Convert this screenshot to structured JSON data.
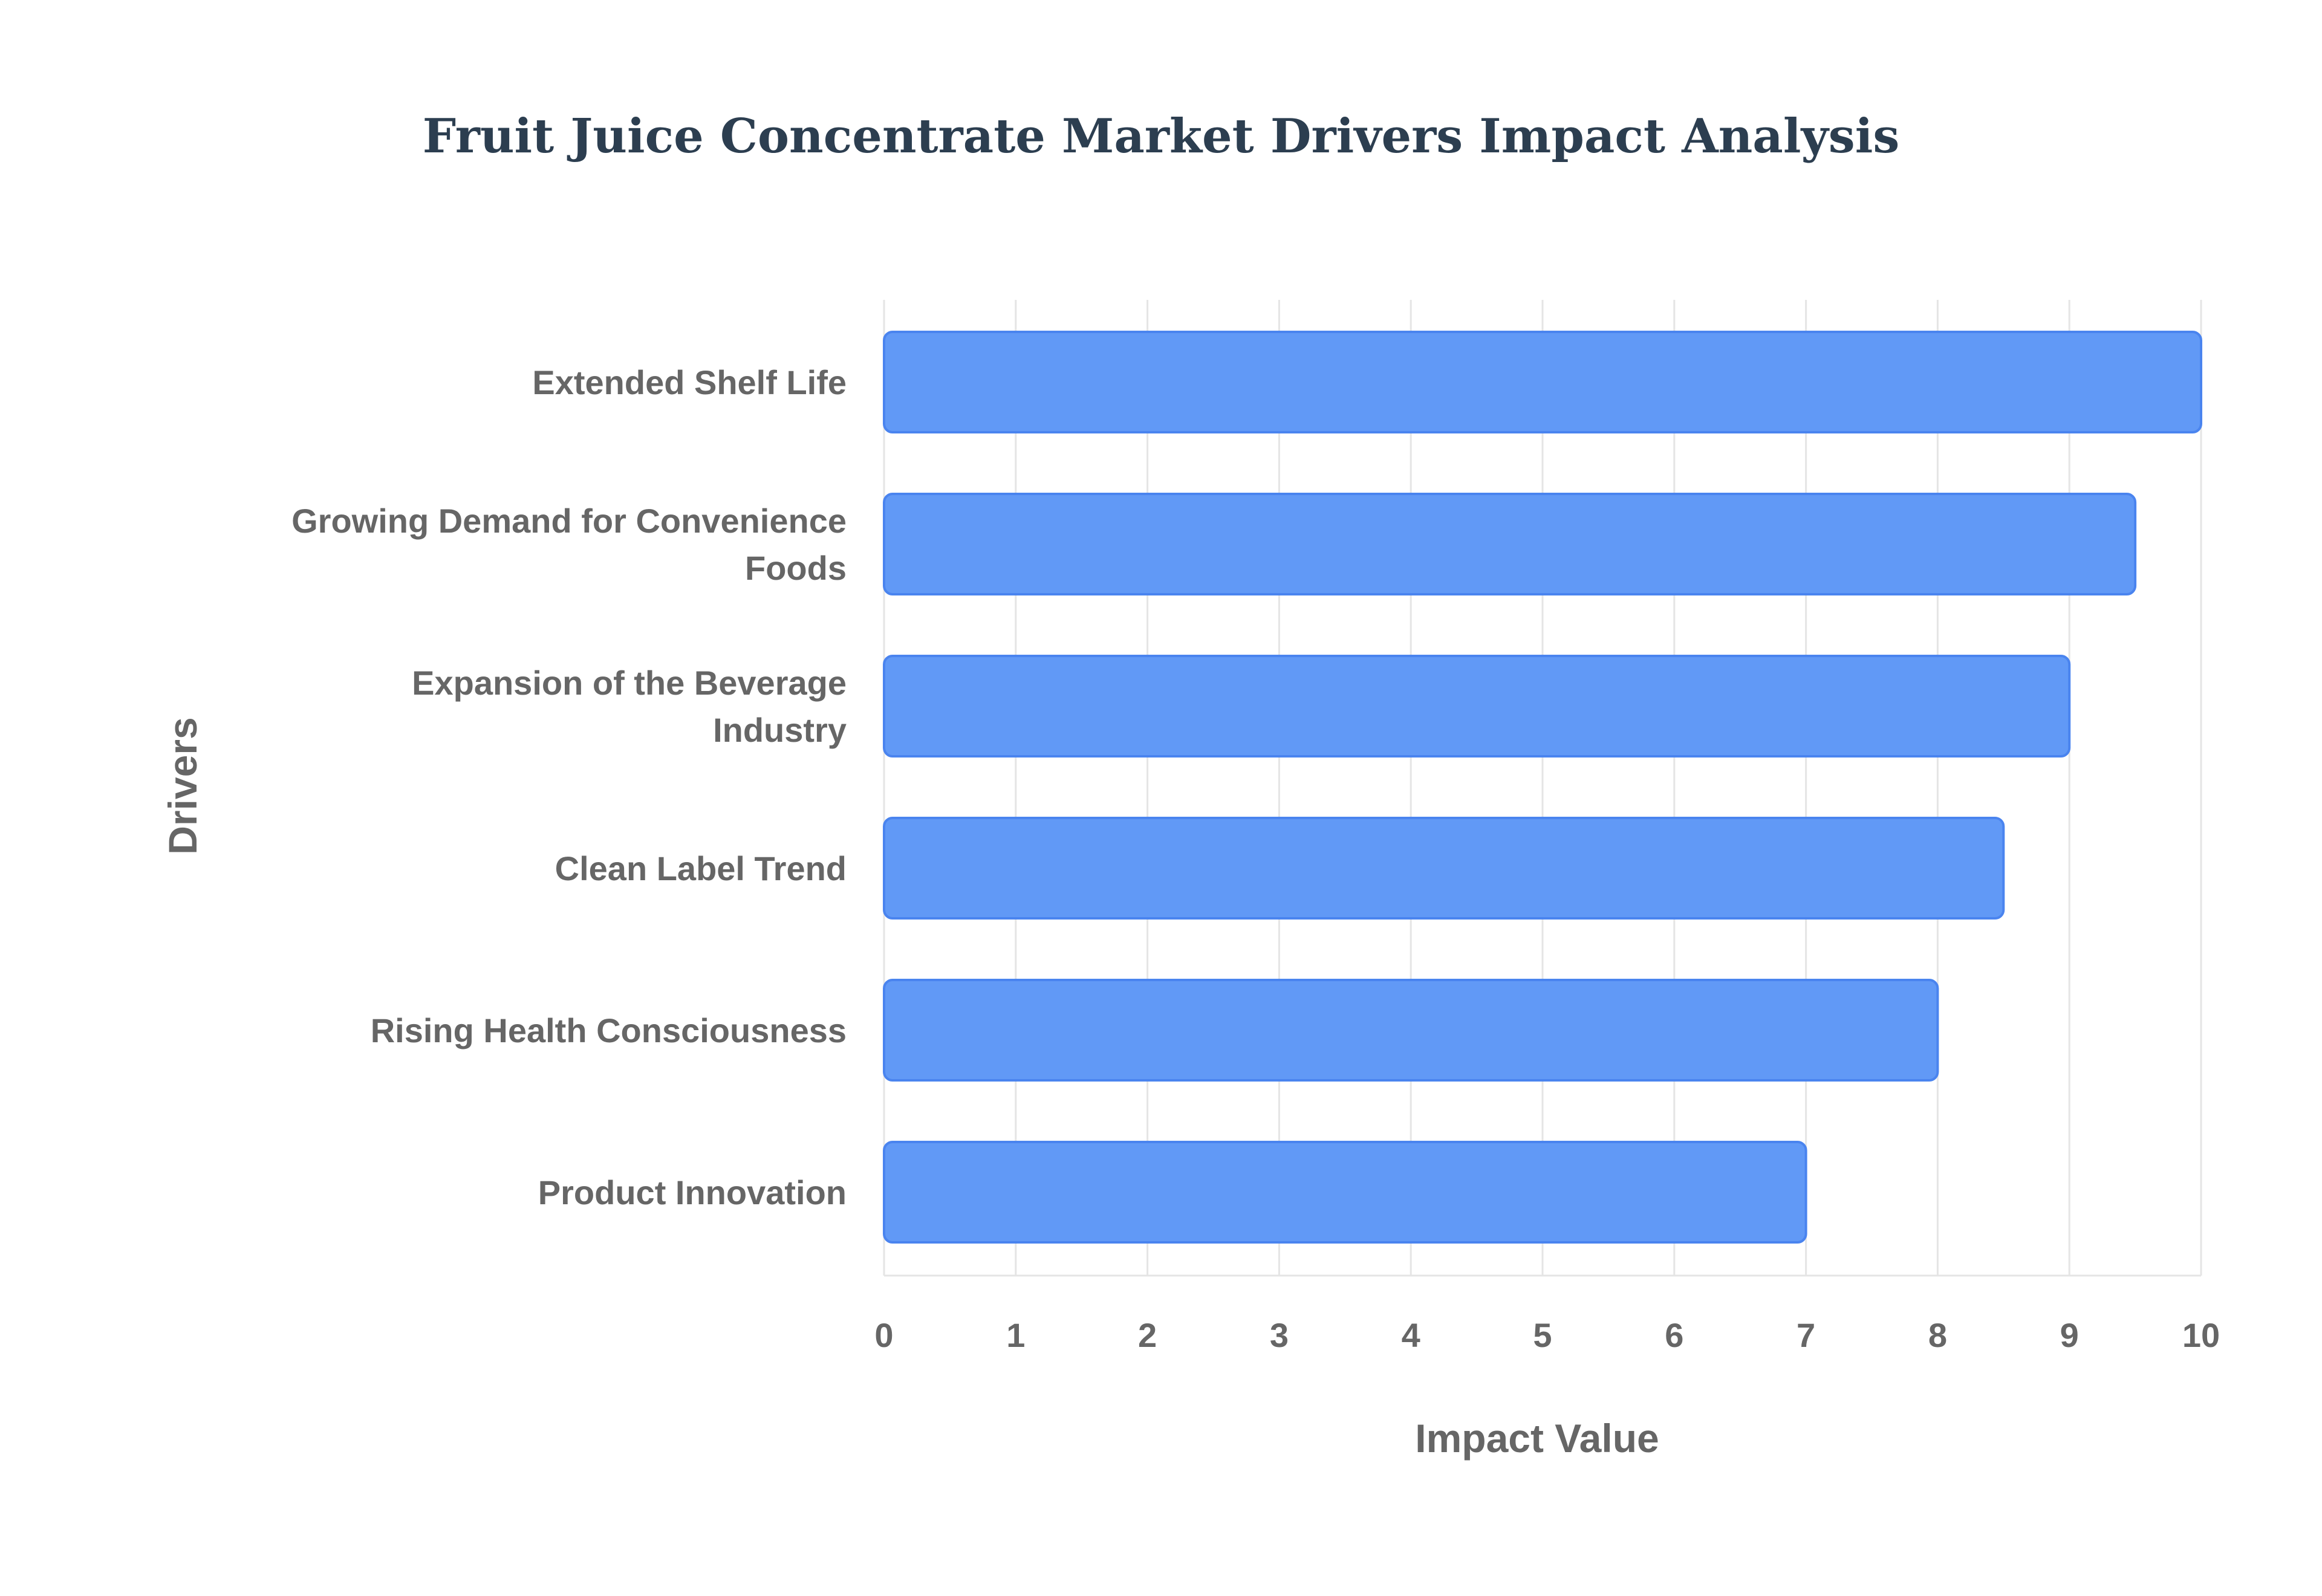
{
  "chart_data": {
    "type": "bar",
    "orientation": "horizontal",
    "title": "Fruit Juice Concentrate Market Drivers Impact Analysis",
    "xlabel": "Impact Value",
    "ylabel": "Drivers",
    "xlim": [
      0,
      10
    ],
    "x_ticks": [
      0,
      1,
      2,
      3,
      4,
      5,
      6,
      7,
      8,
      9,
      10
    ],
    "categories": [
      "Extended Shelf Life",
      "Growing Demand for Convenience Foods",
      "Expansion of the Beverage Industry",
      "Clean Label Trend",
      "Rising Health Consciousness",
      "Product Innovation"
    ],
    "category_lines": [
      [
        "Extended Shelf Life"
      ],
      [
        "Growing Demand for Convenience",
        "Foods"
      ],
      [
        "Expansion of the Beverage",
        "Industry"
      ],
      [
        "Clean Label Trend"
      ],
      [
        "Rising Health Consciousness"
      ],
      [
        "Product Innovation"
      ]
    ],
    "values": [
      10,
      9.5,
      9,
      8.5,
      8,
      7
    ],
    "grid": true,
    "legend": "none",
    "bar_color": "#6199f6",
    "bar_edge_color": "#4a84ef"
  }
}
